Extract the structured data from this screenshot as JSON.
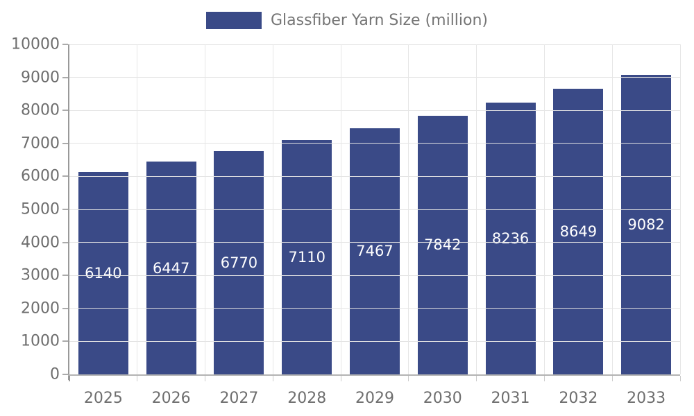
{
  "legend": {
    "label": "Glassfiber Yarn Size (million)"
  },
  "colors": {
    "bar": "#3a4a87",
    "grid": "#e3e3e3",
    "axis": "#999999",
    "tick_label": "#6e6e6e",
    "legend_text": "#757575",
    "value_label": "#ffffff"
  },
  "chart_data": {
    "type": "bar",
    "title": "",
    "xlabel": "",
    "ylabel": "",
    "categories": [
      "2025",
      "2026",
      "2027",
      "2028",
      "2029",
      "2030",
      "2031",
      "2032",
      "2033"
    ],
    "series": [
      {
        "name": "Glassfiber Yarn Size (million)",
        "values": [
          6140,
          6447,
          6770,
          7110,
          7467,
          7842,
          8236,
          8649,
          9082
        ]
      }
    ],
    "value_labels": [
      "6140",
      "6447",
      "6770",
      "7110",
      "7467",
      "7842",
      "8236",
      "8649",
      "9082"
    ],
    "ylim": [
      0,
      10000
    ],
    "ytick_step": 1000,
    "ytick_labels": [
      "0",
      "1000",
      "2000",
      "3000",
      "4000",
      "5000",
      "6000",
      "7000",
      "8000",
      "9000",
      "10000"
    ],
    "grid": true,
    "legend_position": "top-center",
    "value_label_position": "inside-center"
  }
}
